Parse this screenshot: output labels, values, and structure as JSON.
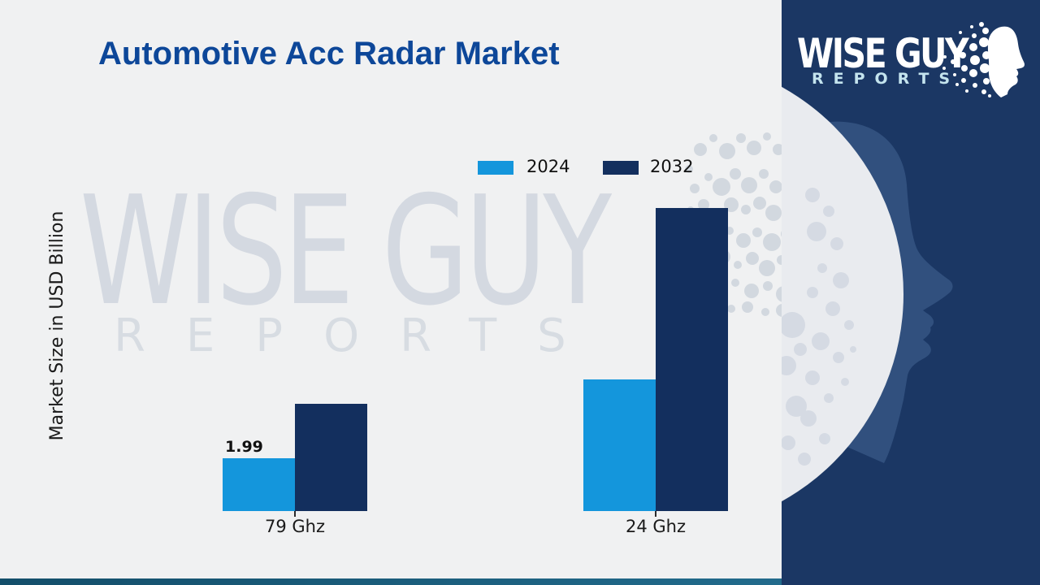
{
  "page": {
    "title": "Automotive Acc Radar Market"
  },
  "logo": {
    "name": "WISE GUY",
    "sub": "REPORTS"
  },
  "watermark": {
    "name": "WISE GUY",
    "sub": "REPORTS"
  },
  "colors": {
    "background": "#f0f1f2",
    "title_blue": "#0d4799",
    "series_2024": "#1496dc",
    "series_2032": "#132f5e",
    "panel_navy": "#1b3764",
    "panel_face": "#31507e",
    "panel_circle": "#e9ebef",
    "teal_strip_left": "#134e6a",
    "teal_strip_right": "#226b8c"
  },
  "chart_data": {
    "type": "bar",
    "title": "Automotive Acc Radar Market",
    "xlabel": "",
    "ylabel": "Market Size in USD Billion",
    "categories": [
      "79 Ghz",
      "24 Ghz"
    ],
    "series": [
      {
        "name": "2024",
        "color": "#1496dc",
        "values": [
          1.99,
          4.96
        ]
      },
      {
        "name": "2032",
        "color": "#132f5e",
        "values": [
          4.04,
          11.42
        ]
      }
    ],
    "data_labels": [
      {
        "series": "2024",
        "category": "79 Ghz",
        "text": "1.99"
      }
    ],
    "legend_position": "top",
    "grid": false,
    "axis_lines": false,
    "ylim": [
      0,
      12
    ]
  }
}
